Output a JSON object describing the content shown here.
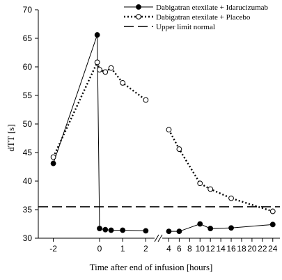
{
  "chart_data": {
    "type": "line",
    "ylabel": "dTT [s]",
    "xlabel": "Time after end of infusion [hours]",
    "ylim": [
      30,
      70
    ],
    "y_ticks": [
      "30",
      "35",
      "40",
      "45",
      "50",
      "55",
      "60",
      "65",
      "70"
    ],
    "x_axis_segments": [
      {
        "range": [
          -2.5,
          2.2
        ],
        "ticks": [
          "-2",
          "0",
          "1",
          "2"
        ]
      },
      {
        "range": [
          3,
          24.3
        ],
        "ticks": [
          "4",
          "6",
          "8",
          "10",
          "12",
          "14",
          "16",
          "18",
          "20",
          "22",
          "24"
        ]
      }
    ],
    "legend_position": "top-right",
    "grid": false,
    "series": [
      {
        "name": "Dabigatran etexilate + Idarucizumab",
        "style": "solid",
        "marker": "filled-circle",
        "segments": [
          {
            "x": [
              -2,
              -0.1,
              0,
              0.25,
              0.5,
              1,
              2
            ],
            "y": [
              43.1,
              65.6,
              31.7,
              31.5,
              31.4,
              31.4,
              31.3
            ]
          },
          {
            "x": [
              4,
              6,
              10,
              12,
              16,
              24
            ],
            "y": [
              31.2,
              31.2,
              32.5,
              31.7,
              31.8,
              32.4
            ]
          }
        ]
      },
      {
        "name": "Dabigatran etexilate + Placebo",
        "style": "dotted",
        "marker": "open-circle",
        "segments": [
          {
            "x": [
              -2,
              -0.1,
              0,
              0.25,
              0.5,
              1,
              2
            ],
            "y": [
              44.2,
              60.8,
              59.5,
              59.1,
              59.8,
              57.2,
              54.2
            ]
          },
          {
            "x": [
              4,
              6,
              10,
              12,
              16,
              24
            ],
            "y": [
              49.0,
              45.6,
              39.6,
              38.6,
              37.0,
              34.7
            ]
          }
        ]
      }
    ],
    "reference_lines": [
      {
        "name": "Upper limit normal",
        "style": "dashed",
        "y": 35.5
      }
    ]
  }
}
